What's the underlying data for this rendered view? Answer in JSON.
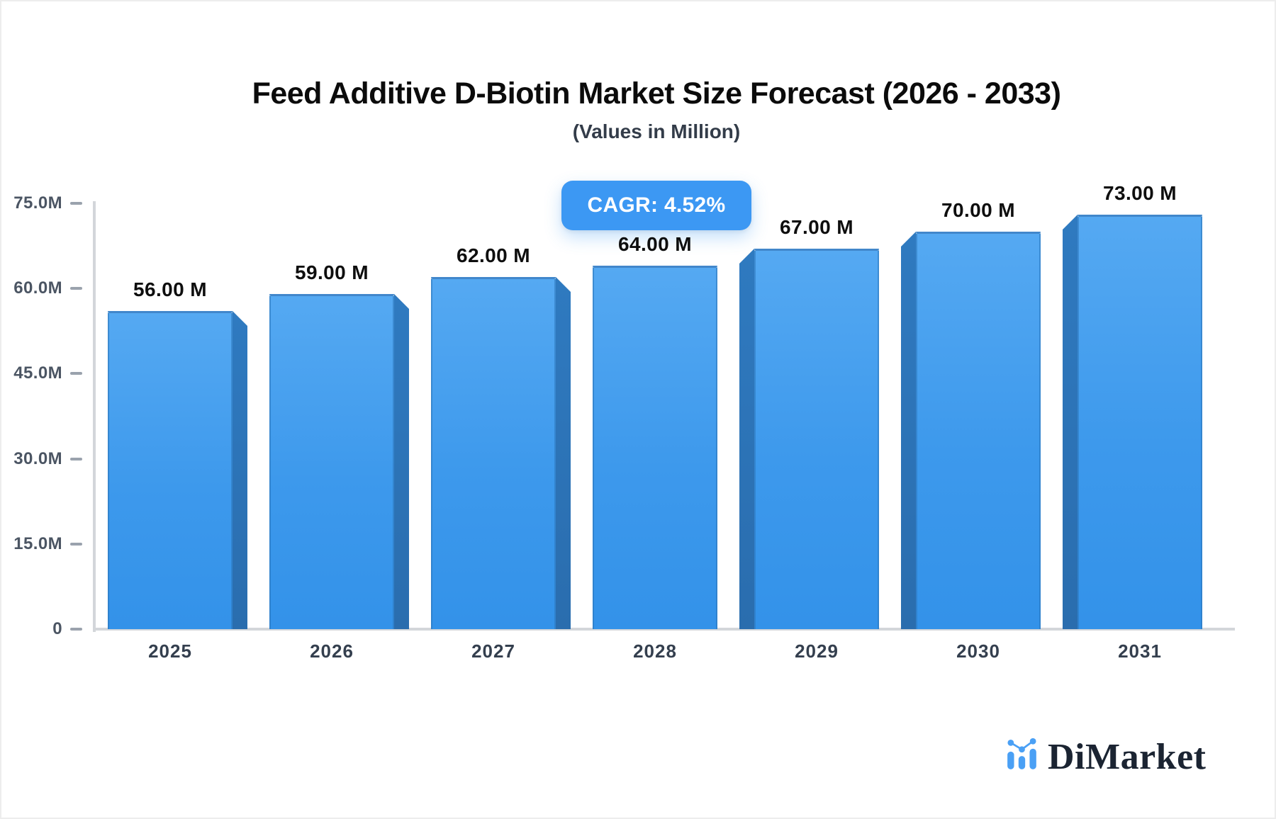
{
  "header": {
    "title": "Feed Additive D-Biotin Market Size Forecast (2026 - 2033)",
    "subtitle": "(Values in Million)"
  },
  "brand": {
    "name": "DiMarket",
    "icon": "mini-bar-chart-icon"
  },
  "chart_data": {
    "type": "bar",
    "title": "Feed Additive D-Biotin Market Size Forecast (2026 - 2033)",
    "subtitle": "(Values in Million)",
    "categories": [
      "2025",
      "2026",
      "2027",
      "2028",
      "2029",
      "2030",
      "2031"
    ],
    "values": [
      56,
      59,
      62,
      64,
      67,
      70,
      73
    ],
    "value_labels": [
      "56.00 M",
      "59.00 M",
      "62.00 M",
      "64.00 M",
      "67.00 M",
      "70.00 M",
      "73.00 M"
    ],
    "unit_suffix": "M",
    "ylim": [
      0,
      75
    ],
    "yticks": [
      {
        "value": 75,
        "label": "75.0M"
      },
      {
        "value": 60,
        "label": "60.0M"
      },
      {
        "value": 45,
        "label": "45.0M"
      },
      {
        "value": 30,
        "label": "30.0M"
      },
      {
        "value": 15,
        "label": "15.0M"
      },
      {
        "value": 0,
        "label": "0"
      }
    ],
    "grid": false,
    "legend": null,
    "annotations": [
      {
        "text": "CAGR: 4.52%",
        "position": "top-center"
      }
    ],
    "colors": {
      "bar_face_top": "#55a9f2",
      "bar_face_bottom": "#3392e9",
      "bar_side": "#2d76ba",
      "badge_bg": "#3c98f3",
      "badge_text": "#ffffff",
      "axis_line": "#d3d6da",
      "tick_dash": "#9aa2ad",
      "tick_text": "#4b5563",
      "category_text": "#343f4e",
      "value_text": "#0e0e0e",
      "brand_blue": "#4aa0f5",
      "brand_text": "#1b2432"
    }
  }
}
